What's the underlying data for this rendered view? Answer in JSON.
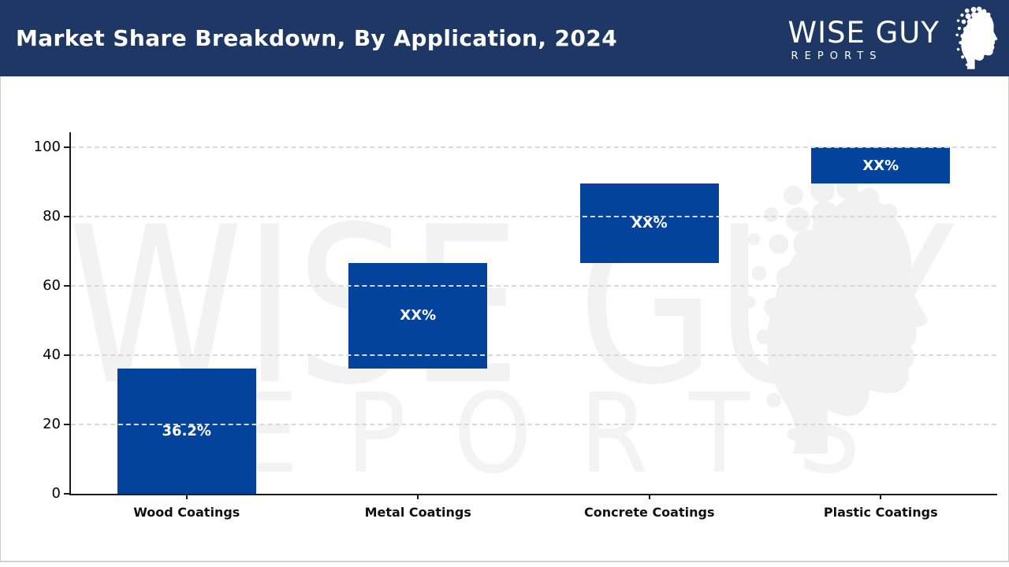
{
  "header": {
    "title": "Market Share Breakdown, By Application, 2024",
    "bg_color": "#1f3765",
    "logo": {
      "line1": "WISE GUY",
      "line2": "REPORTS"
    }
  },
  "watermark": {
    "line1": "WISE GUY",
    "line2": "REPORTS"
  },
  "chart_data": {
    "type": "bar",
    "subtype": "waterfall-breakdown",
    "title": "Market Share Breakdown, By Application, 2024",
    "categories": [
      "Wood Coatings",
      "Metal Coatings",
      "Concrete Coatings",
      "Plastic Coatings"
    ],
    "segments": [
      {
        "category": "Wood Coatings",
        "start": 0,
        "end": 36.2,
        "label": "36.2%"
      },
      {
        "category": "Metal Coatings",
        "start": 36.2,
        "end": 66.6,
        "label": "XX%"
      },
      {
        "category": "Concrete Coatings",
        "start": 66.6,
        "end": 89.5,
        "label": "XX%"
      },
      {
        "category": "Plastic Coatings",
        "start": 89.5,
        "end": 100,
        "label": "XX%"
      }
    ],
    "y_ticks": [
      0,
      20,
      40,
      60,
      80,
      100
    ],
    "ylim": [
      0,
      100
    ],
    "xlabel": "",
    "ylabel": "",
    "grid": "horizontal-dashed",
    "legend": "none",
    "bar_color": "#04439c",
    "bar_label_color": "#ffffff",
    "axis_color": "#1a1a1a",
    "gridline_color": "#d9d9d9"
  }
}
